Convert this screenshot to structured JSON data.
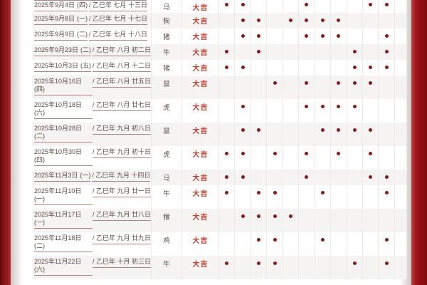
{
  "page": {
    "kind": "auspicious-dates-almanac-table",
    "colors": {
      "side_bar_red": "#9a1317",
      "luck_red": "#c2392a",
      "date_text": "#5d4945",
      "link_underline": "#b3847f",
      "dot_red": "#8a1b18",
      "alt_row_bg": "#f5f4f2",
      "grid_line": "#eceae7"
    }
  },
  "table": {
    "dot_column_count": 11,
    "rows": [
      {
        "solar": "2025年9月4日",
        "weekday": "(四)",
        "lunar": "/ 乙巳年 七月 十三日",
        "zodiac": "马",
        "luck": "大吉",
        "two_line": false,
        "dots": [
          1,
          2,
          6,
          10,
          11
        ]
      },
      {
        "solar": "2025年9月8日",
        "weekday": "(一)",
        "lunar": "/ 乙巳年 七月 十七日",
        "zodiac": "狗",
        "luck": "大吉",
        "two_line": false,
        "dots": [
          2,
          3,
          5,
          6,
          7,
          8
        ]
      },
      {
        "solar": "2025年9月9日",
        "weekday": "(二)",
        "lunar": "/ 乙巳年 七月 十八日",
        "zodiac": "猪",
        "luck": "大吉",
        "two_line": false,
        "dots": [
          2,
          3,
          6,
          7,
          8,
          11
        ]
      },
      {
        "solar": "2025年9月23日",
        "weekday": "(二)",
        "lunar": "/ 乙巳年 八月 初二日",
        "zodiac": "牛",
        "luck": "大吉",
        "two_line": false,
        "dots": [
          1,
          3,
          9,
          11
        ]
      },
      {
        "solar": "2025年10月3日",
        "weekday": "(五)",
        "lunar": "/ 乙巳年 八月 十二日",
        "zodiac": "猪",
        "luck": "大吉",
        "two_line": false,
        "dots": [
          1,
          2,
          9,
          10,
          11
        ]
      },
      {
        "solar": "2025年10月16日",
        "weekday": "(四)",
        "lunar": "/ 乙巳年 八月 廿五日",
        "zodiac": "鼠",
        "luck": "大吉",
        "two_line": true,
        "dots": [
          4,
          6,
          8,
          9,
          10
        ]
      },
      {
        "solar": "2025年10月18日",
        "weekday": "(六)",
        "lunar": "/ 乙巳年 八月 廿七日",
        "zodiac": "虎",
        "luck": "大吉",
        "two_line": true,
        "dots": [
          2,
          6,
          7,
          8,
          9
        ]
      },
      {
        "solar": "2025年10月28日",
        "weekday": "(二)",
        "lunar": "/ 乙巳年 九月 初八日",
        "zodiac": "鼠",
        "luck": "大吉",
        "two_line": true,
        "dots": [
          2,
          3,
          7,
          8,
          9,
          10
        ]
      },
      {
        "solar": "2025年10月30日",
        "weekday": "(四)",
        "lunar": "/ 乙巳年 九月 初十日",
        "zodiac": "虎",
        "luck": "大吉",
        "two_line": true,
        "dots": [
          1,
          2,
          4,
          6,
          8,
          10
        ]
      },
      {
        "solar": "2025年11月3日",
        "weekday": "(一)",
        "lunar": "/ 乙巳年 九月 十四日",
        "zodiac": "马",
        "luck": "大吉",
        "two_line": false,
        "dots": [
          1,
          2,
          6,
          10,
          11
        ]
      },
      {
        "solar": "2025年11月10日",
        "weekday": "(一)",
        "lunar": "/ 乙巳年 九月 廿一日",
        "zodiac": "牛",
        "luck": "大吉",
        "two_line": true,
        "dots": [
          1,
          3,
          4,
          7,
          11
        ]
      },
      {
        "solar": "2025年11月17日",
        "weekday": "(一)",
        "lunar": "/ 乙巳年 九月 廿八日",
        "zodiac": "猴",
        "luck": "大吉",
        "two_line": true,
        "dots": [
          2,
          3,
          4,
          5
        ]
      },
      {
        "solar": "2025年11月18日",
        "weekday": "(二)",
        "lunar": "/ 乙巳年 九月 廿九日",
        "zodiac": "鸡",
        "luck": "大吉",
        "two_line": true,
        "dots": [
          3,
          4,
          7,
          11
        ]
      },
      {
        "solar": "2025年11月22日",
        "weekday": "(六)",
        "lunar": "/ 乙巳年 十月 初三日",
        "zodiac": "牛",
        "luck": "大吉",
        "two_line": true,
        "dots": [
          1,
          3,
          4,
          9,
          11
        ]
      }
    ]
  }
}
